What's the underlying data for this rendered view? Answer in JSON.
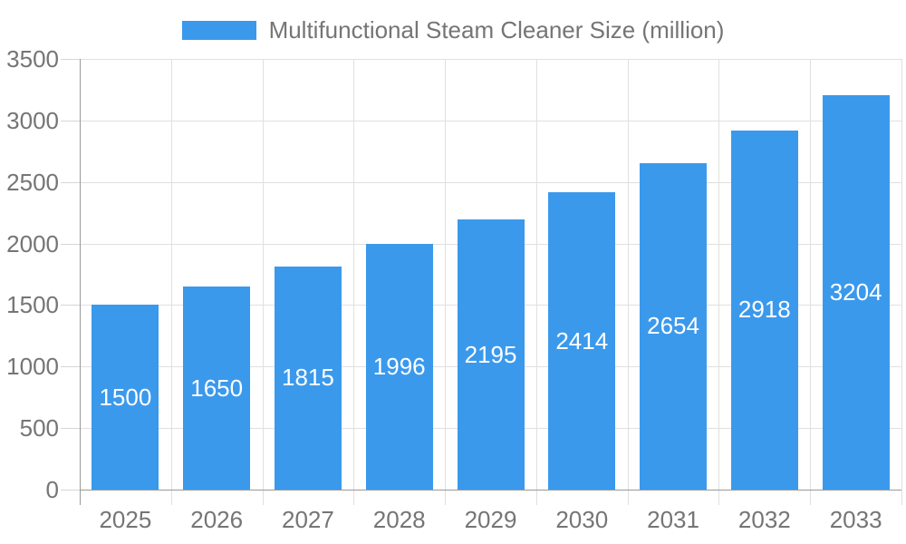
{
  "chart_data": {
    "type": "bar",
    "title": "Multifunctional Steam Cleaner Size (million)",
    "categories": [
      "2025",
      "2026",
      "2027",
      "2028",
      "2029",
      "2030",
      "2031",
      "2032",
      "2033"
    ],
    "values": [
      1500,
      1650,
      1815,
      1996,
      2195,
      2414,
      2654,
      2918,
      3204
    ],
    "xlabel": "",
    "ylabel": "",
    "ylim": [
      0,
      3500
    ],
    "y_ticks": [
      0,
      500,
      1000,
      1500,
      2000,
      2500,
      3000,
      3500
    ],
    "grid": true,
    "legend_position": "top",
    "value_label_position": "inside-center"
  },
  "colors": {
    "bar": "#3B99EC",
    "axis_text": "#757575",
    "grid_line": "#e0e0e0",
    "axis_line": "#999999",
    "tick_line": "#d6d6d6",
    "value_label": "#ffffff",
    "background": "#ffffff"
  }
}
